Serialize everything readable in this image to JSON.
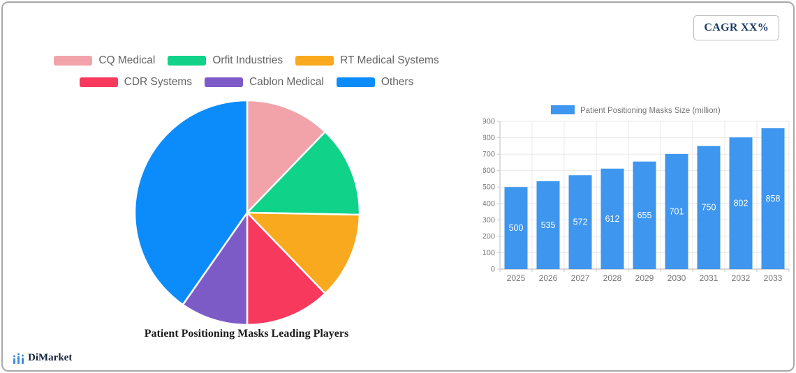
{
  "cagr_badge": {
    "label": "CAGR XX%"
  },
  "brand": {
    "name": "DiMarket",
    "icon_color": "#3f8cdd",
    "text_color": "#16243d"
  },
  "chart_data": [
    {
      "type": "pie",
      "title": "Patient Positioning Masks Leading Players",
      "labels": [
        "CQ Medical",
        "Orfit Industries",
        "RT Medical Systems",
        "CDR Systems",
        "Cablon Medical",
        "Others"
      ],
      "values": [
        12.2,
        13.1,
        12.5,
        12.2,
        9.7,
        40.3
      ],
      "colors": [
        "#F2A3A9",
        "#10D289",
        "#F9A91E",
        "#F8395E",
        "#7D5BC6",
        "#0B8CFA"
      ],
      "start_angle_deg": 0,
      "direction": "clockwise",
      "legend_position": "top",
      "legend_wrap": 3,
      "slice_border_color": "#ffffff"
    },
    {
      "type": "bar",
      "legend": "Patient Positioning Masks Size (million)",
      "categories": [
        "2025",
        "2026",
        "2027",
        "2028",
        "2029",
        "2030",
        "2031",
        "2032",
        "2033"
      ],
      "values": [
        500,
        535,
        572,
        612,
        655,
        701,
        750,
        802,
        858
      ],
      "bar_color": "#3E96EE",
      "value_label_color": "#FFFFFF",
      "ylim": [
        0,
        900
      ],
      "ytick_step": 100,
      "grid": true,
      "legend_position": "top",
      "axis_text_color": "#757575",
      "grid_color": "#e8e8e8",
      "axis_line_color": "#c9c9c9"
    }
  ]
}
